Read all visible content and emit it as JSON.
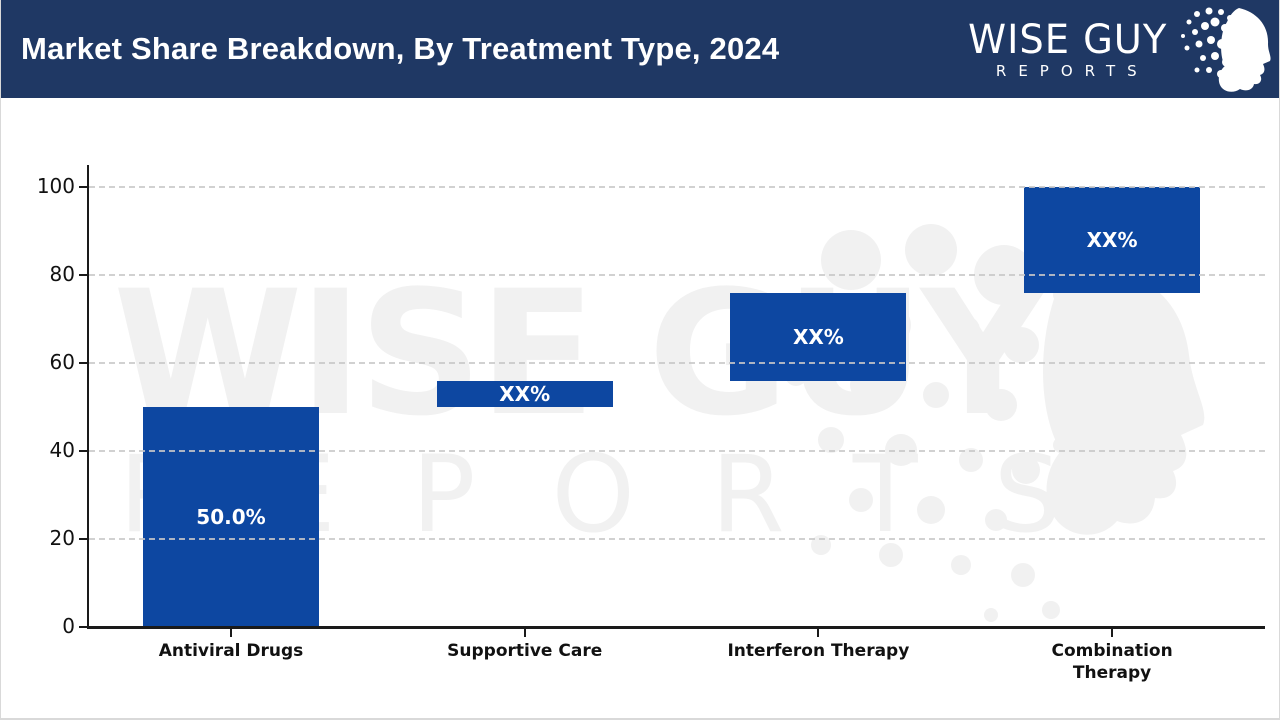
{
  "header": {
    "title": "Market Share Breakdown, By Treatment Type, 2024",
    "logo": {
      "line1": "WISE GUY",
      "line2": "REPORTS"
    }
  },
  "watermark": {
    "line1": "WISE GUY",
    "line2": "REPORTS"
  },
  "colors": {
    "header_bg": "#1f3864",
    "bar": "#0d47a1",
    "grid": "#c9c9c9",
    "watermark": "#f1f1f1",
    "axis": "#1a1a1a",
    "bar_label_text": "#ffffff"
  },
  "chart_data": {
    "type": "bar",
    "subtype": "waterfall",
    "title": "Market Share Breakdown, By Treatment Type, 2024",
    "categories": [
      "Antiviral Drugs",
      "Supportive Care",
      "Interferon Therapy",
      "Combination Therapy"
    ],
    "category_lines": [
      [
        "Antiviral Drugs"
      ],
      [
        "Supportive Care"
      ],
      [
        "Interferon Therapy"
      ],
      [
        "Combination",
        "Therapy"
      ]
    ],
    "series": [
      {
        "name": "Market Share (%)",
        "segments": [
          {
            "category": "Antiviral Drugs",
            "start": 0,
            "end": 50,
            "label": "50.0%"
          },
          {
            "category": "Supportive Care",
            "start": 50,
            "end": 56,
            "label": "XX%"
          },
          {
            "category": "Interferon Therapy",
            "start": 56,
            "end": 76,
            "label": "XX%"
          },
          {
            "category": "Combination Therapy",
            "start": 76,
            "end": 100,
            "label": "XX%"
          }
        ]
      }
    ],
    "ylim": [
      0,
      100
    ],
    "yticks": [
      0,
      20,
      40,
      60,
      80,
      100
    ],
    "xlabel": "",
    "ylabel": "",
    "grid": "horizontal-dashed",
    "legend": "none"
  }
}
